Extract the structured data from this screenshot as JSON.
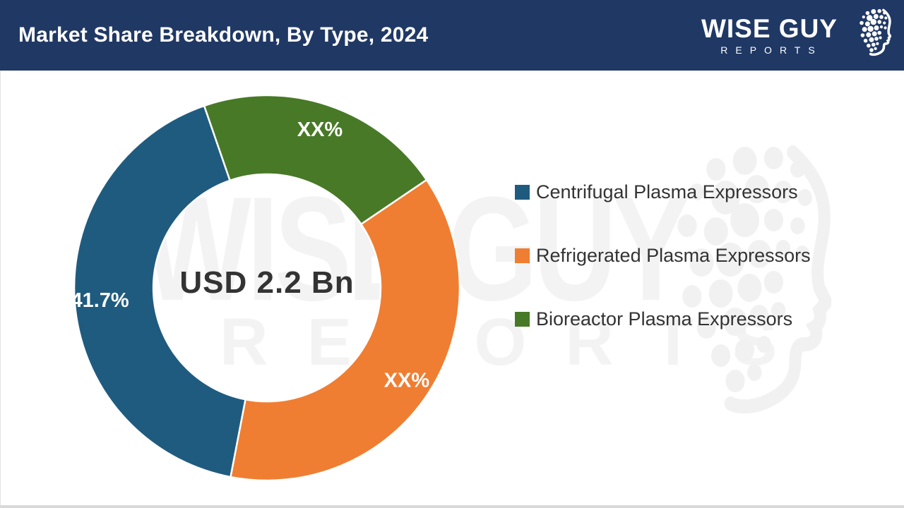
{
  "header": {
    "title": "Market Share Breakdown, By Type, 2024",
    "bg_color": "#203864",
    "logo": {
      "word": "WISE GUY",
      "sub": "REPORTS"
    }
  },
  "watermark": {
    "word": "WISE GUY",
    "sub": "REPORTS"
  },
  "chart_data": {
    "type": "pie",
    "subtype": "donut",
    "title": "Market Share Breakdown, By Type, 2024",
    "center_label": "USD 2.2 Bn",
    "start_angle_deg": 109,
    "direction": "counterclockwise",
    "hole_ratio": 0.59,
    "legend_position": "right",
    "segments": [
      {
        "name": "Centrifugal Plasma Expressors",
        "value_pct": 41.7,
        "display_label": "41.7%",
        "color": "#1f5b7f"
      },
      {
        "name": "Refrigerated Plasma Expressors",
        "value_pct": 37.5,
        "display_label": "XX%",
        "color": "#ef7e32"
      },
      {
        "name": "Bioreactor Plasma Expressors",
        "value_pct": 20.8,
        "display_label": "XX%",
        "color": "#487927"
      }
    ]
  }
}
